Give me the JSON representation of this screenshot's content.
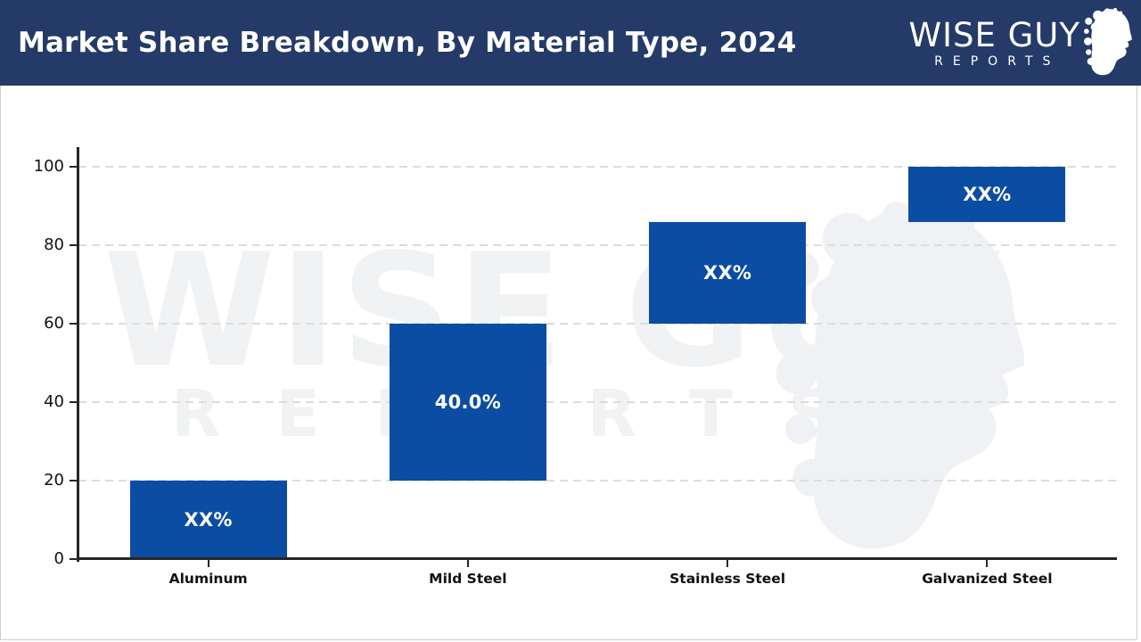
{
  "header": {
    "title": "Market Share Breakdown, By Material Type, 2024",
    "bg_color": "#243A68",
    "logo": {
      "line1": "WISE GUY",
      "line2": "REPORTS"
    }
  },
  "watermark": {
    "line1": "WISE GUY",
    "line2": "REPORTS"
  },
  "chart_data": {
    "type": "bar",
    "subtype": "waterfall-stacked",
    "title": "Market Share Breakdown, By Material Type, 2024",
    "categories": [
      "Aluminum",
      "Mild Steel",
      "Stainless Steel",
      "Galvanized Steel"
    ],
    "series": [
      {
        "name": "Market share (%)",
        "segments": [
          {
            "category": "Aluminum",
            "from": 0,
            "to": 20,
            "label": "XX%"
          },
          {
            "category": "Mild Steel",
            "from": 20,
            "to": 60,
            "label": "40.0%"
          },
          {
            "category": "Stainless Steel",
            "from": 60,
            "to": 86,
            "label": "XX%"
          },
          {
            "category": "Galvanized Steel",
            "from": 86,
            "to": 100,
            "label": "XX%"
          }
        ]
      }
    ],
    "yticks": [
      0,
      20,
      40,
      60,
      80,
      100
    ],
    "ylim": [
      0,
      104
    ],
    "xlabel": "",
    "ylabel": "",
    "grid": "horizontal-dashed",
    "legend_position": "none",
    "bar_color": "#0B4DA2",
    "bar_label_color": "#ffffff",
    "axis_color": "#262626",
    "grid_color": "#dcdcdc"
  }
}
